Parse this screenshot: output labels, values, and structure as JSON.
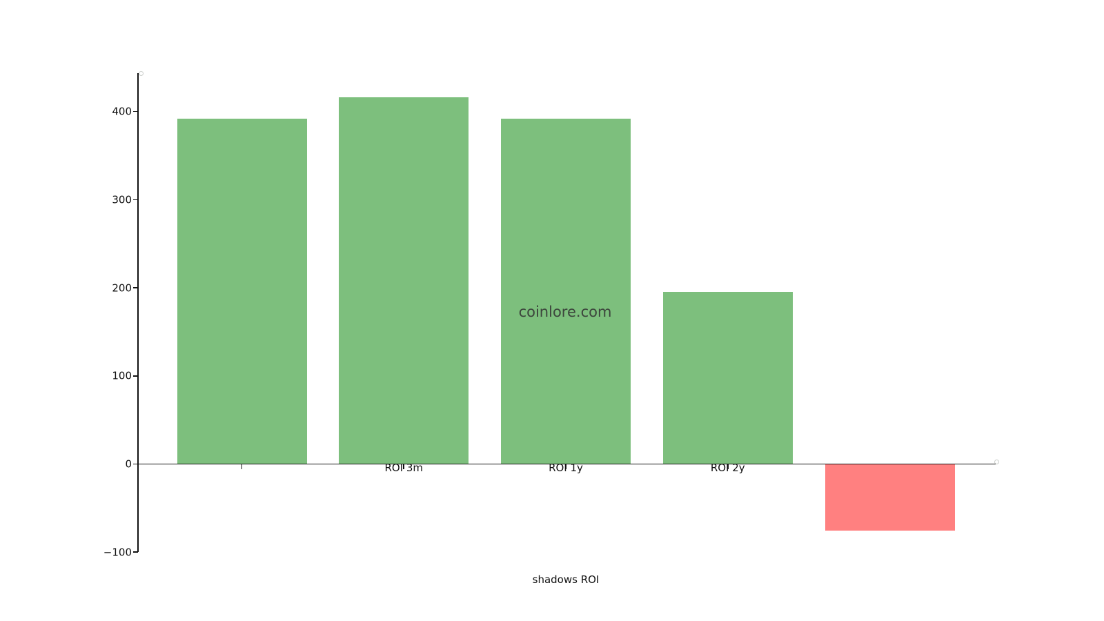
{
  "figure": {
    "background": "#ffffff"
  },
  "watermark": {
    "text": "coinlore.com",
    "color": "#3c443c"
  },
  "chart_data": {
    "type": "bar",
    "title": "",
    "xlabel": "shadows ROI",
    "ylabel": "",
    "categories": [
      "",
      "ROI 3m",
      "ROI 1y",
      "ROI 2y",
      ""
    ],
    "values": [
      392,
      416,
      392,
      195,
      -75
    ],
    "positive_color": "#7dbf7d",
    "negative_color": "#ff8080",
    "bar_colors": [
      "#7dbf7d",
      "#7dbf7d",
      "#7dbf7d",
      "#7dbf7d",
      "#ff8080"
    ],
    "yticks": [
      400,
      300,
      200,
      100,
      0,
      -100
    ],
    "ytick_labels": [
      "400",
      "300",
      "200",
      "100",
      "0",
      "−100"
    ],
    "ylim": [
      -100.5,
      443
    ],
    "xticks_visible": [
      true,
      true,
      true,
      true,
      false
    ],
    "x_axis_position": "zero",
    "grid": false,
    "legend": "none",
    "axis_color": "#111111",
    "text_color": "#111111"
  }
}
